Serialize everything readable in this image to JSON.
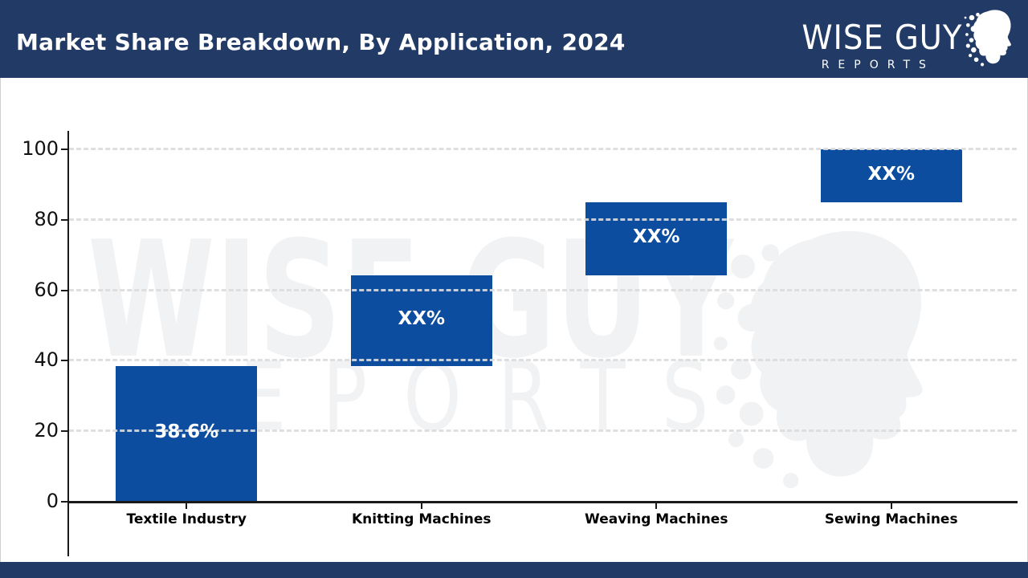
{
  "header": {
    "title": "Market Share Breakdown, By Application, 2024",
    "logo": {
      "line1": "WISE GUY",
      "line2": "REPORTS"
    }
  },
  "watermark": {
    "line1": "WISE GUY",
    "line2": "REPORTS"
  },
  "colors": {
    "header_bg": "#213a66",
    "footer_bg": "#213a66",
    "bar": "#0d4da0",
    "bar_label": "#ffffff",
    "grid": "#dcdcdc",
    "axis": "#1a1a1a",
    "watermark": "#f1f2f4"
  },
  "chart_data": {
    "type": "bar",
    "subtype": "waterfall-floating-bars",
    "title": "Market Share Breakdown, By Application, 2024",
    "categories": [
      "Textile Industry",
      "Knitting Machines",
      "Weaving Machines",
      "Sewing Machines"
    ],
    "segments": [
      {
        "category": "Textile Industry",
        "start": 0,
        "end": 38.6,
        "label": "38.6%"
      },
      {
        "category": "Knitting Machines",
        "start": 38.6,
        "end": 64.3,
        "label": "XX%"
      },
      {
        "category": "Weaving Machines",
        "start": 64.3,
        "end": 85.0,
        "label": "XX%"
      },
      {
        "category": "Sewing Machines",
        "start": 85.0,
        "end": 100.0,
        "label": "XX%"
      }
    ],
    "ylim": [
      0,
      100
    ],
    "yticks": [
      0,
      20,
      40,
      60,
      80,
      100
    ],
    "xlabel": "",
    "ylabel": "",
    "grid": "dashed-horizontal",
    "legend": false
  }
}
